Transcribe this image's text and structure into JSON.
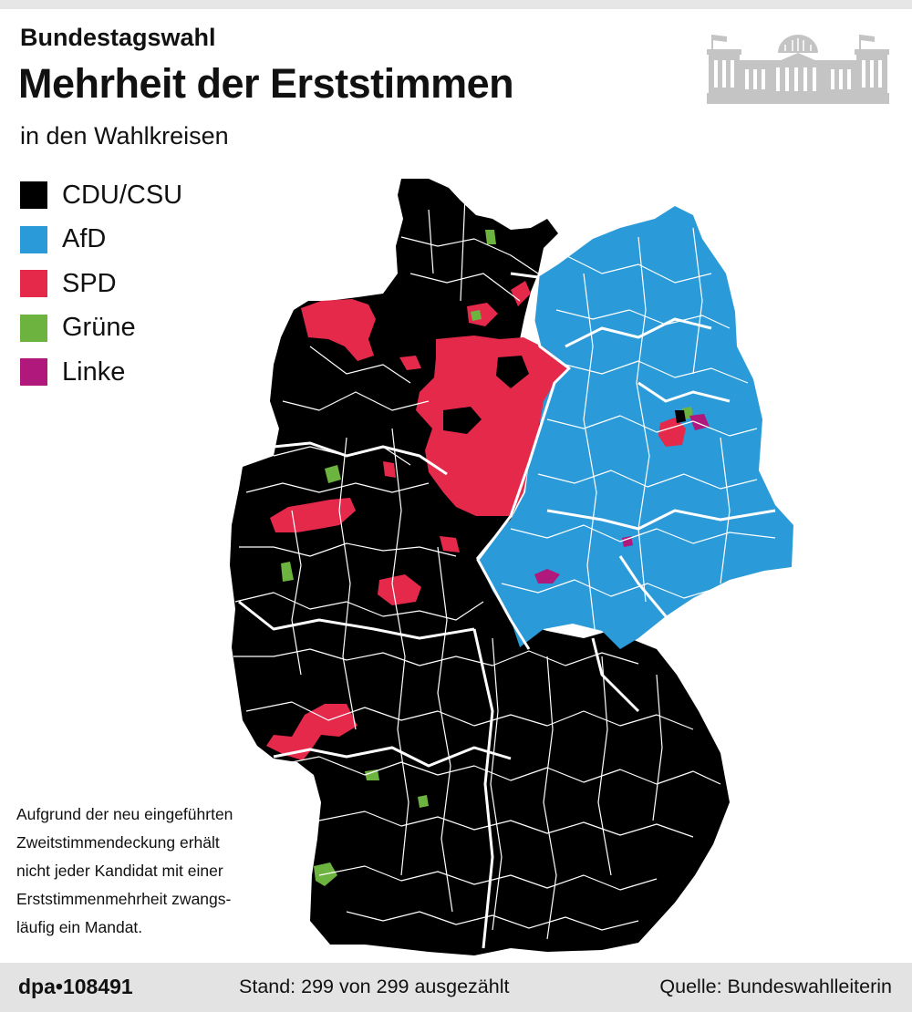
{
  "header": {
    "supertitle": "Bundestagswahl",
    "title": "Mehrheit der Erststimmen",
    "subtitle": "in den Wahlkreisen"
  },
  "legend": [
    {
      "label": "CDU/CSU",
      "color": "#000000"
    },
    {
      "label": "AfD",
      "color": "#2a9ad8"
    },
    {
      "label": "SPD",
      "color": "#e4294b"
    },
    {
      "label": "Grüne",
      "color": "#6db33f"
    },
    {
      "label": "Linke",
      "color": "#b0187c"
    }
  ],
  "footnote": [
    "Aufgrund der neu eingeführten",
    "Zweitstimmendeckung erhält",
    "nicht jeder Kandidat mit einer",
    "Erststimmenmehrheit zwangs-",
    "läufig ein Mandat."
  ],
  "footer": {
    "id": "dpa•108491",
    "stand": "Stand: 299 von 299 ausgezählt",
    "source": "Quelle: Bundeswahlleiterin"
  },
  "icons": {
    "logo": "bundestag-building-icon"
  },
  "colors": {
    "cdu_csu": "#000000",
    "afd": "#2a9ad8",
    "spd": "#e4294b",
    "gruene": "#6db33f",
    "linke": "#b0187c",
    "border": "#ffffff",
    "icon": "#c4c4c4"
  }
}
